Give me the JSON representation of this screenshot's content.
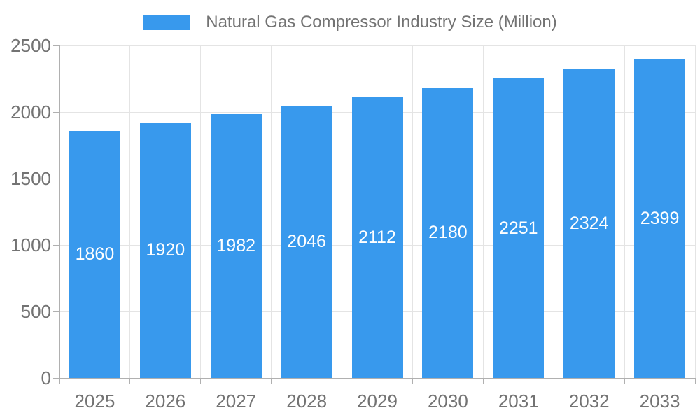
{
  "chart_data": {
    "type": "bar",
    "title": "Natural Gas Compressor Industry Size (Million)",
    "categories": [
      "2025",
      "2026",
      "2027",
      "2028",
      "2029",
      "2030",
      "2031",
      "2032",
      "2033"
    ],
    "values": [
      1860,
      1920,
      1982,
      2046,
      2112,
      2180,
      2251,
      2324,
      2399
    ],
    "series_name": "Natural Gas Compressor Industry Size (Million)",
    "xlabel": "",
    "ylabel": "",
    "ylim": [
      0,
      2500
    ],
    "yticks": [
      0,
      500,
      1000,
      1500,
      2000,
      2500
    ],
    "grid": "on",
    "legend_position": "top-center",
    "bar_label_position": "inside-center",
    "colors": {
      "bar": "#3899ED",
      "bar_label": "#FFFFFF",
      "axis": "#B0B0B0",
      "grid": "#E4E4E4",
      "text": "#737373",
      "background": "#FFFFFF"
    }
  }
}
